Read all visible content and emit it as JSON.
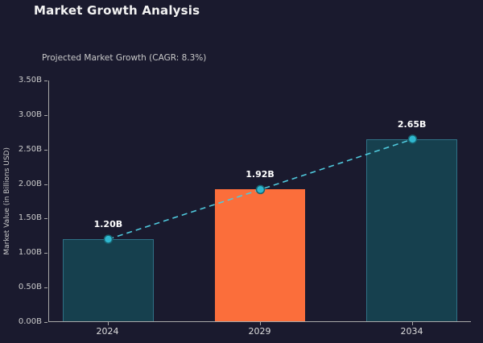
{
  "chart_data": {
    "type": "bar",
    "title": "Market Growth Analysis",
    "subtitle": "Projected Market Growth (CAGR: 8.3%)",
    "xlabel": "",
    "ylabel": "Market Value (in Billions USD)",
    "categories": [
      "2024",
      "2029",
      "2034"
    ],
    "values": [
      1.2,
      1.92,
      2.65
    ],
    "value_labels": [
      "1.20B",
      "1.92B",
      "2.65B"
    ],
    "bar_colors": [
      "#16404e",
      "#fb6e3b",
      "#16404e"
    ],
    "bar_edge_colors": [
      "#2f7186",
      "#fb6e3b",
      "#2f7186"
    ],
    "ylim": [
      0,
      3.5
    ],
    "yticks": [
      {
        "value": 0.0,
        "label": "0.00B"
      },
      {
        "value": 0.5,
        "label": "0.50B"
      },
      {
        "value": 1.0,
        "label": "1.00B"
      },
      {
        "value": 1.5,
        "label": "1.50B"
      },
      {
        "value": 2.0,
        "label": "2.00B"
      },
      {
        "value": 2.5,
        "label": "2.50B"
      },
      {
        "value": 3.0,
        "label": "3.00B"
      },
      {
        "value": 3.5,
        "label": "3.50B"
      }
    ],
    "trend_line": {
      "style": "dashed",
      "color": "#4fc8dc",
      "marker_color": "#2fb7cf",
      "marker_edge_color": "#17616f"
    },
    "grid": false,
    "legend_position": "none",
    "colors": {
      "background": "#1a1a2e",
      "title": "#f2f2f2",
      "subtitle": "#c9c9c9",
      "axis": "#a8a8a8",
      "tick_label": "#cccccc",
      "data_label": "#ffffff"
    }
  }
}
